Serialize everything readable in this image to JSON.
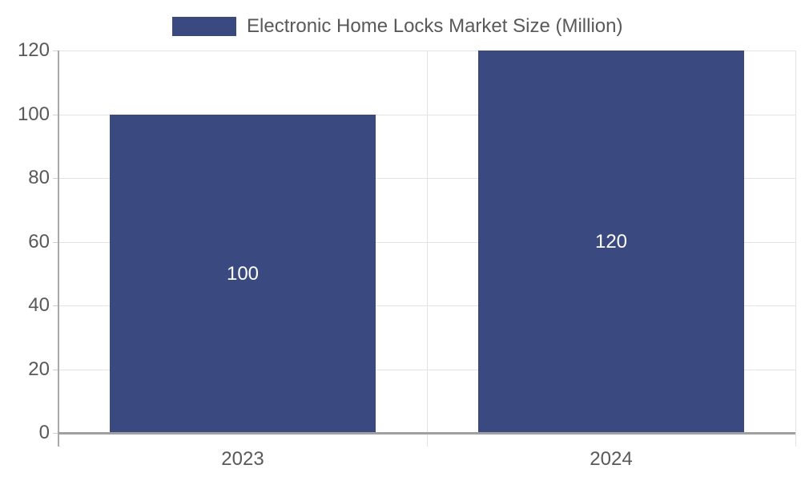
{
  "legend": {
    "label": "Electronic Home Locks Market Size (Million)"
  },
  "colors": {
    "bar": "#3A4A80",
    "bar_value_text": "#FFFFFF",
    "axis_text": "#595959",
    "legend_text": "#595959",
    "gridline": "#E3E3E3",
    "tick_mark": "#D0D0D0",
    "axis_line": "#A9A9A9",
    "baseline": "#A0A0A0"
  },
  "chart_data": {
    "type": "bar",
    "title": "Electronic Home Locks Market Size (Million)",
    "categories": [
      "2023",
      "2024"
    ],
    "values": [
      100,
      120
    ],
    "bar_value_labels": [
      "100",
      "120"
    ],
    "xlabel": "",
    "ylabel": "",
    "ylim": [
      0,
      120
    ],
    "yticks": [
      0,
      20,
      40,
      60,
      80,
      100,
      120
    ],
    "grid": true,
    "legend_position": "top",
    "legend_entries": [
      "Electronic Home Locks Market Size (Million)"
    ]
  }
}
